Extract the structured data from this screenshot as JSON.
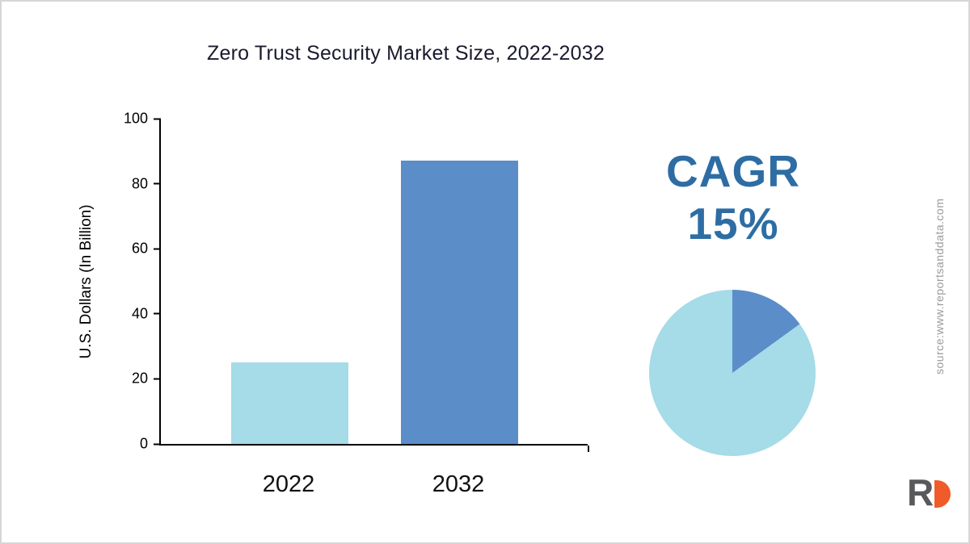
{
  "page": {
    "title": "Zero Trust Security Market Size, 2022-2032",
    "cagr_label": "CAGR",
    "cagr_value": "15%",
    "source_text": "source:www.reportsanddata.com",
    "logo_letter": "R"
  },
  "colors": {
    "bar_2022": "#a6dbe8",
    "bar_2032": "#5b8dc9",
    "accent_text": "#2e6da4",
    "pie_slice": "#5b8dc9",
    "pie_remainder": "#a6dbe8",
    "axis": "#000000",
    "source_gray": "#9b9b9b",
    "logo_gray": "#58595b",
    "logo_orange": "#f15a29"
  },
  "chart_data": [
    {
      "type": "bar",
      "title": "Zero Trust Security Market Size, 2022-2032",
      "categories": [
        "2022",
        "2032"
      ],
      "values": [
        25,
        87
      ],
      "bar_colors": [
        "#a6dbe8",
        "#5b8dc9"
      ],
      "xlabel": "",
      "ylabel": "U.S. Dollars (In Billion)",
      "ylim": [
        0,
        100
      ],
      "yticks": [
        0,
        20,
        40,
        60,
        80,
        100
      ],
      "grid": false,
      "legend": null
    },
    {
      "type": "pie",
      "title": "CAGR 15%",
      "labels": [
        "CAGR",
        "remainder"
      ],
      "values": [
        15,
        85
      ],
      "percent": 15,
      "slice_color": "#5b8dc9",
      "remainder_color": "#a6dbe8",
      "start_angle_deg": 0,
      "direction": "clockwise"
    }
  ]
}
